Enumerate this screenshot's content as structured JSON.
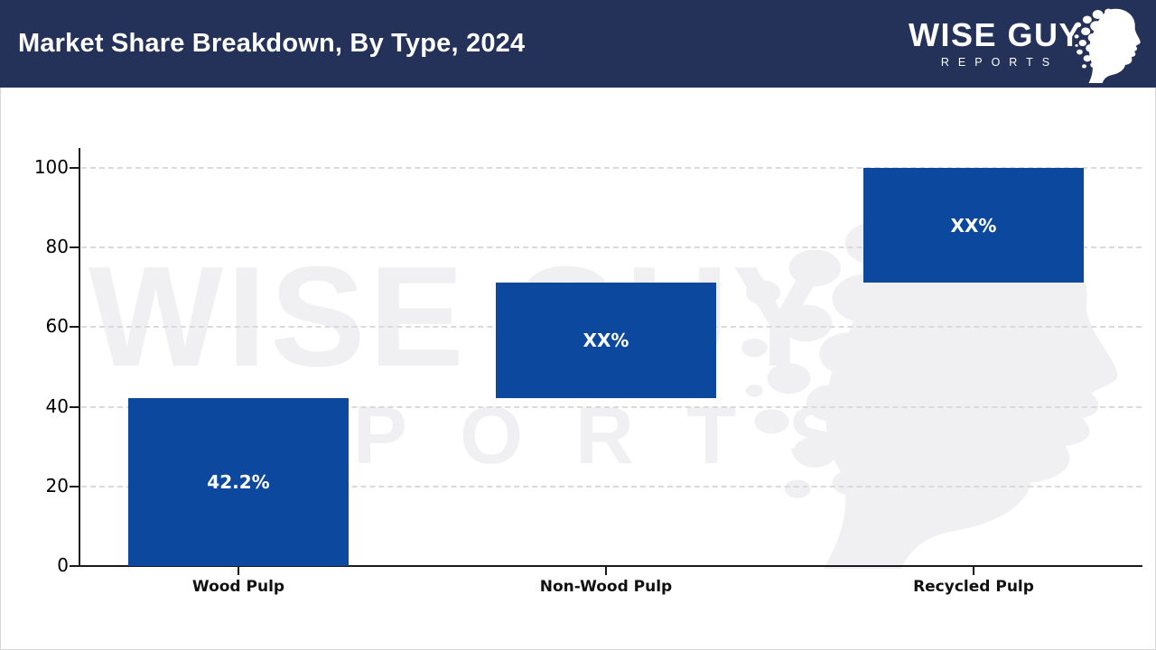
{
  "header": {
    "title": "Market Share Breakdown, By Type, 2024"
  },
  "brand": {
    "name": "WISE GUY",
    "reports": "REPORTS"
  },
  "watermark": {
    "line1": "WISE GUY",
    "line2": "REPORTS"
  },
  "colors": {
    "header_bg": "#243158",
    "bar_blue": "#0b489e",
    "bar_label": "#ffffff",
    "watermark_gray": "#f0f0f2",
    "gridline": "#dadada",
    "axis": "#1a1a1a"
  },
  "chart_data": {
    "type": "bar",
    "subtype": "waterfall",
    "title": "Market Share Breakdown, By Type, 2024",
    "categories": [
      "Wood Pulp",
      "Non-Wood Pulp",
      "Recycled Pulp"
    ],
    "series": [
      {
        "name": "Market Share",
        "segments": [
          {
            "category": "Wood Pulp",
            "start": 0,
            "end": 42.2,
            "label": "42.2%"
          },
          {
            "category": "Non-Wood Pulp",
            "start": 42.2,
            "end": 71.2,
            "label": "XX%"
          },
          {
            "category": "Recycled Pulp",
            "start": 71.2,
            "end": 100,
            "label": "XX%"
          }
        ]
      }
    ],
    "yticks": [
      0,
      20,
      40,
      60,
      80,
      100
    ],
    "ylim": [
      0,
      105
    ],
    "xlabel": "",
    "ylabel": "",
    "grid": "horizontal-dashed",
    "legend": "none",
    "bar_color": "#0b489e",
    "label_color": "#ffffff"
  }
}
